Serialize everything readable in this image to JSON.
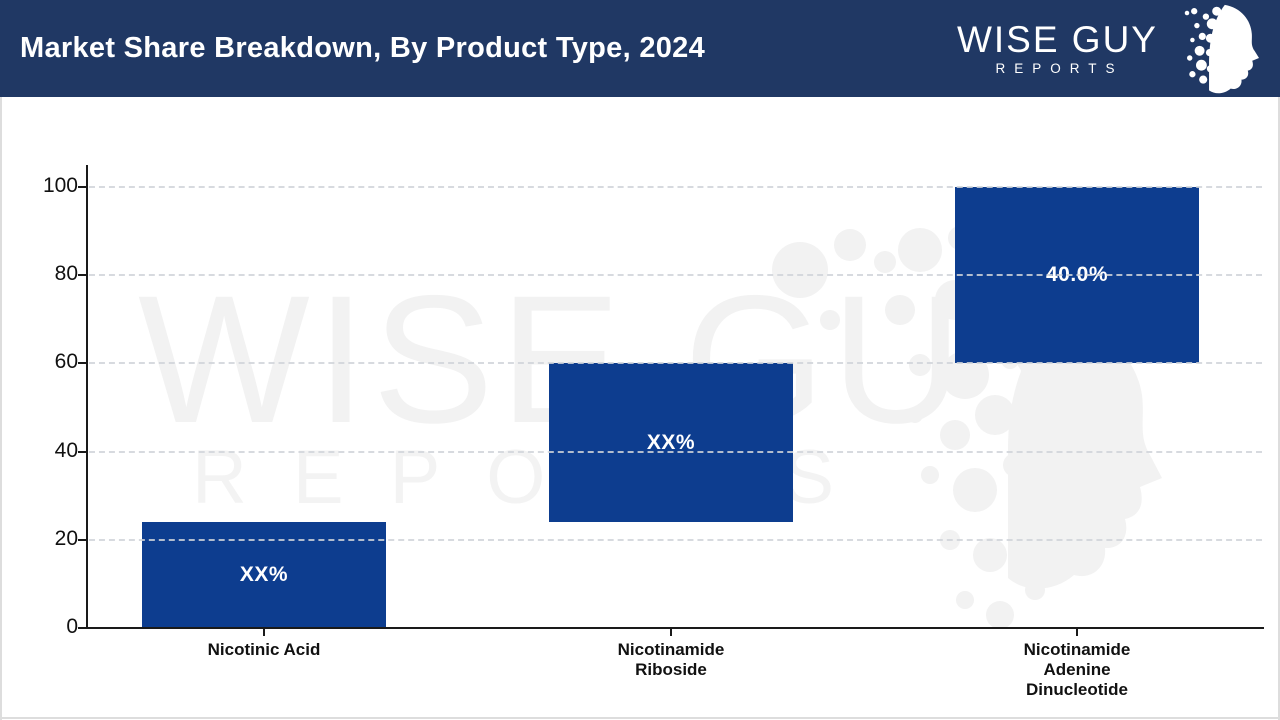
{
  "header": {
    "title": "Market Share Breakdown, By Product Type, 2024",
    "bg_color": "#203864",
    "logo": {
      "line1": "WISE GUY",
      "line2": "REPORTS"
    }
  },
  "watermark": {
    "line1": "WISE GUY",
    "line2": "REPORTS"
  },
  "chart_data": {
    "type": "bar",
    "subtype": "floating-segment-breakdown",
    "title": "Market Share Breakdown, By Product Type, 2024",
    "categories": [
      "Nicotinic Acid",
      "Nicotinamide Riboside",
      "Nicotinamide Adenine Dinucleotide"
    ],
    "categories_display": [
      "Nicotinic Acid",
      "Nicotinamide\nRiboside",
      "Nicotinamide\nAdenine\nDinucleotide"
    ],
    "bars": [
      {
        "category": "Nicotinic Acid",
        "start": 0,
        "end": 24,
        "label": "XX%"
      },
      {
        "category": "Nicotinamide Riboside",
        "start": 24,
        "end": 60,
        "label": "XX%"
      },
      {
        "category": "Nicotinamide Adenine Dinucleotide",
        "start": 60,
        "end": 100,
        "label": "40.0%"
      }
    ],
    "yticks": [
      0,
      20,
      40,
      60,
      80,
      100
    ],
    "ylim": [
      0,
      105
    ],
    "xlabel": "",
    "ylabel": "",
    "grid": "horizontal-dashed",
    "legend": "none",
    "bar_color": "#0d3d8f",
    "bar_label_color": "#ffffff"
  }
}
